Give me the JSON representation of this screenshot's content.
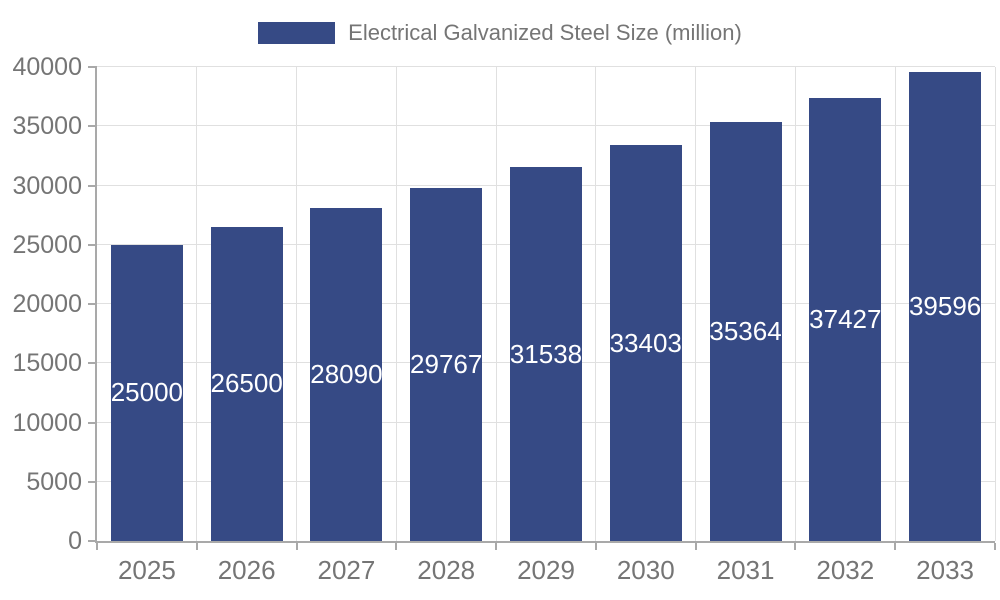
{
  "legend": {
    "label": "Electrical Galvanized Steel Size (million)"
  },
  "chart_data": {
    "type": "bar",
    "title": "Electrical Galvanized Steel Size (million)",
    "categories": [
      "2025",
      "2026",
      "2027",
      "2028",
      "2029",
      "2030",
      "2031",
      "2032",
      "2033"
    ],
    "values": [
      25000,
      26500,
      28090,
      29767,
      31538,
      33403,
      35364,
      37427,
      39596
    ],
    "xlabel": "",
    "ylabel": "",
    "ylim": [
      0,
      40000
    ],
    "yticks": [
      0,
      5000,
      10000,
      15000,
      20000,
      25000,
      30000,
      35000,
      40000
    ],
    "grid": true,
    "legend_position": "top-center",
    "bar_value_labels": "inside-center",
    "colors": {
      "bar": "#364A85",
      "grid": "#E0E0E0",
      "axis": "#A9A9A9",
      "tick_text": "#757575",
      "bar_label": "#FFFFFF"
    }
  }
}
